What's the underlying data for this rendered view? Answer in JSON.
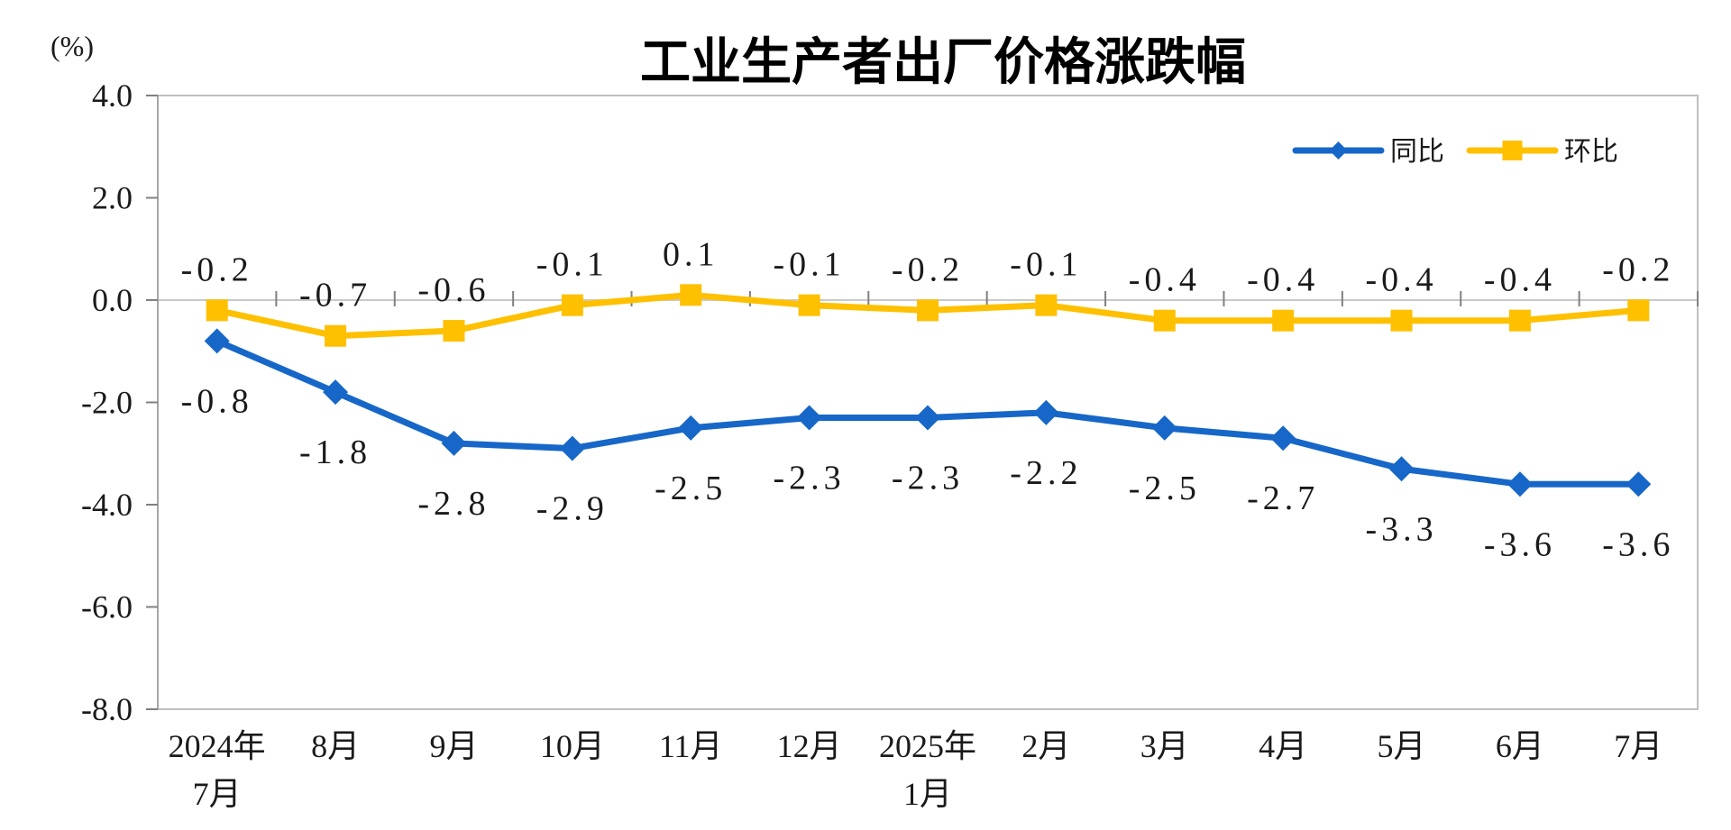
{
  "title": "工业生产者出厂价格涨跌幅",
  "y_axis_unit": "(%)",
  "colors": {
    "series_tongbi": "#1767C8",
    "series_huanbi": "#FFC000",
    "plot_border": "#BFBFBF",
    "axis_line": "#A6A6A6",
    "zero_line": "#C9C9C9",
    "tick": "#808080",
    "text": "#1A1A1A",
    "title_text": "#000000"
  },
  "legend": {
    "position": "top-right-inside",
    "items": [
      {
        "label": "同比",
        "marker": "diamond"
      },
      {
        "label": "环比",
        "marker": "square"
      }
    ]
  },
  "chart_data": {
    "type": "line",
    "title": "工业生产者出厂价格涨跌幅",
    "ylabel": "(%)",
    "xlabel": "",
    "ylim": [
      -8.0,
      4.0
    ],
    "ytick_interval": 2.0,
    "ytick_labels": [
      "4.0",
      "2.0",
      "0.0",
      "-2.0",
      "-4.0",
      "-6.0",
      "-8.0"
    ],
    "grid": "zero-line-only",
    "legend_position": "top-right-inside",
    "categories": [
      "2024年7月",
      "8月",
      "9月",
      "10月",
      "11月",
      "12月",
      "2025年1月",
      "2月",
      "3月",
      "4月",
      "5月",
      "6月",
      "7月"
    ],
    "category_label_lines": [
      [
        "2024年",
        "7月"
      ],
      [
        "8月"
      ],
      [
        "9月"
      ],
      [
        "10月"
      ],
      [
        "11月"
      ],
      [
        "12月"
      ],
      [
        "2025年",
        "1月"
      ],
      [
        "2月"
      ],
      [
        "3月"
      ],
      [
        "4月"
      ],
      [
        "5月"
      ],
      [
        "6月"
      ],
      [
        "7月"
      ]
    ],
    "series": [
      {
        "name": "同比",
        "color": "#1767C8",
        "marker": "diamond",
        "label_position": "below",
        "values": [
          -0.8,
          -1.8,
          -2.8,
          -2.9,
          -2.5,
          -2.3,
          -2.3,
          -2.2,
          -2.5,
          -2.7,
          -3.3,
          -3.6,
          -3.6
        ],
        "labels": [
          "-0.8",
          "-1.8",
          "-2.8",
          "-2.9",
          "-2.5",
          "-2.3",
          "-2.3",
          "-2.2",
          "-2.5",
          "-2.7",
          "-3.3",
          "-3.6",
          "-3.6"
        ]
      },
      {
        "name": "环比",
        "color": "#FFC000",
        "marker": "square",
        "label_position": "above",
        "values": [
          -0.2,
          -0.7,
          -0.6,
          -0.1,
          0.1,
          -0.1,
          -0.2,
          -0.1,
          -0.4,
          -0.4,
          -0.4,
          -0.4,
          -0.2
        ],
        "labels": [
          "-0.2",
          "-0.7",
          "-0.6",
          "-0.1",
          "0.1",
          "-0.1",
          "-0.2",
          "-0.1",
          "-0.4",
          "-0.4",
          "-0.4",
          "-0.4",
          "-0.2"
        ]
      }
    ]
  }
}
